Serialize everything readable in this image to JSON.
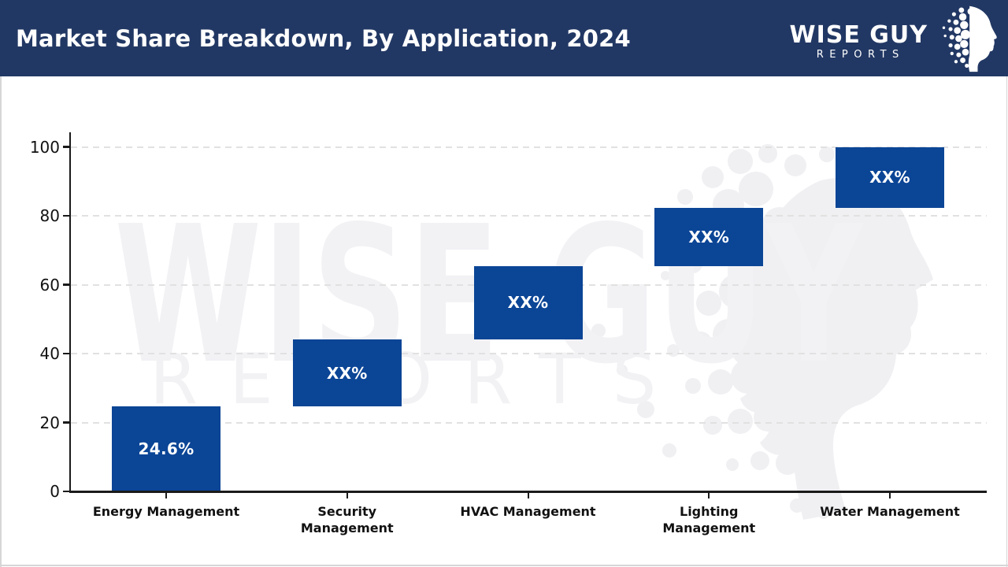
{
  "header": {
    "title": "Market Share Breakdown, By Application, 2024",
    "logo": {
      "name_line": "WISE GUY",
      "sub_line": "REPORTS"
    }
  },
  "watermark": {
    "name_line": "WISE GUY",
    "sub_line": "REPORTS"
  },
  "chart_data": {
    "type": "bar",
    "subtype": "waterfall",
    "title": "Market Share Breakdown, By Application, 2024",
    "categories": [
      "Energy Management",
      "Security Management",
      "HVAC Management",
      "Lighting Management",
      "Water Management"
    ],
    "segments": [
      {
        "category": "Energy Management",
        "lines": [
          "Energy Management"
        ],
        "start": 0,
        "end": 24.6,
        "label": "24.6%"
      },
      {
        "category": "Security Management",
        "lines": [
          "Security",
          "Management"
        ],
        "start": 24.6,
        "end": 44.2,
        "label": "XX%"
      },
      {
        "category": "HVAC Management",
        "lines": [
          "HVAC Management"
        ],
        "start": 44.2,
        "end": 65.4,
        "label": "XX%"
      },
      {
        "category": "Lighting Management",
        "lines": [
          "Lighting",
          "Management"
        ],
        "start": 65.4,
        "end": 82.4,
        "label": "XX%"
      },
      {
        "category": "Water Management",
        "lines": [
          "Water Management"
        ],
        "start": 82.4,
        "end": 100,
        "label": "XX%"
      }
    ],
    "xlabel": "",
    "ylabel": "",
    "ylim": [
      0,
      100
    ],
    "yticks": [
      0,
      20,
      40,
      60,
      80,
      100
    ],
    "grid": "horizontal-dashed",
    "legend": "none",
    "colors": {
      "bar": "#0b4596",
      "bar_label": "#ffffff",
      "header_bg": "#223864",
      "axis": "#1a1a1a",
      "gridline": "#e1e1e1",
      "watermark": "#f0f0f3",
      "page_edge": "#d6d6d6"
    }
  }
}
